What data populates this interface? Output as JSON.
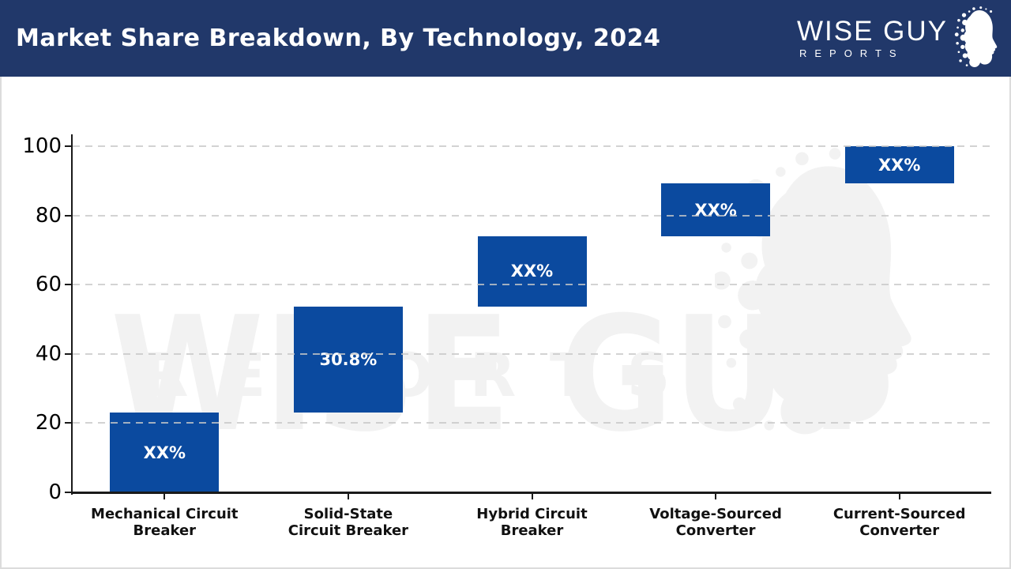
{
  "header": {
    "title": "Market Share Breakdown, By Technology, 2024",
    "logo": {
      "line1": "WISE GUY",
      "line2": "REPORTS"
    }
  },
  "watermark": {
    "line1": "WISE GUY",
    "line2": "REPORTS"
  },
  "colors": {
    "header_background": "#21386a",
    "bar_blue": "#0b4a9f",
    "bar_label_white": "#ffffff",
    "gridline_gray": "#c8c8c8",
    "watermark_gray": "#f2f2f2"
  },
  "chart_data": {
    "type": "bar",
    "variant": "waterfall",
    "title": "Market Share Breakdown, By Technology, 2024",
    "categories": [
      "Mechanical Circuit Breaker",
      "Solid-State Circuit Breaker",
      "Hybrid Circuit Breaker",
      "Voltage-Sourced Converter",
      "Current-Sourced Converter"
    ],
    "category_lines": [
      [
        "Mechanical Circuit",
        "Breaker"
      ],
      [
        "Solid-State",
        "Circuit Breaker"
      ],
      [
        "Hybrid Circuit",
        "Breaker"
      ],
      [
        "Voltage-Sourced",
        "Converter"
      ],
      [
        "Current-Sourced",
        "Converter"
      ]
    ],
    "bars": [
      {
        "category": "Mechanical Circuit Breaker",
        "label": "XX%",
        "start": 0,
        "end": 23
      },
      {
        "category": "Solid-State Circuit Breaker",
        "label": "30.8%",
        "value": 30.8,
        "start": 23,
        "end": 53.8
      },
      {
        "category": "Hybrid Circuit Breaker",
        "label": "XX%",
        "start": 53.8,
        "end": 74
      },
      {
        "category": "Voltage-Sourced Converter",
        "label": "XX%",
        "start": 74,
        "end": 89.3
      },
      {
        "category": "Current-Sourced Converter",
        "label": "XX%",
        "start": 89.3,
        "end": 100
      }
    ],
    "ylim": [
      0,
      100
    ],
    "yticks": [
      0,
      20,
      40,
      60,
      80,
      100
    ],
    "xlabel": "",
    "ylabel": "",
    "grid": "horizontal-dashed",
    "legend": "none",
    "bar_color": "#0b4a9f"
  }
}
